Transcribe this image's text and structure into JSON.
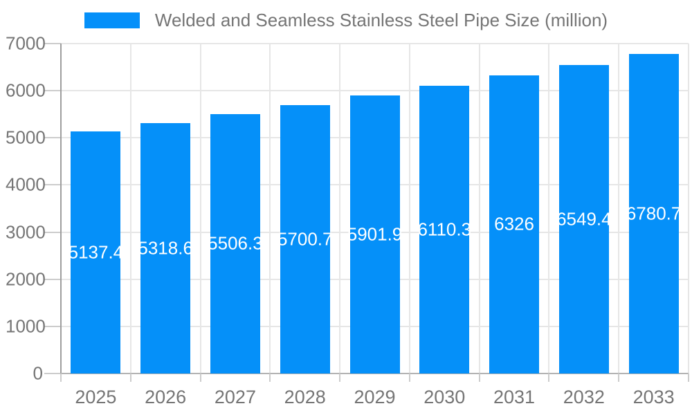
{
  "chart_data": {
    "type": "bar",
    "title": "Welded and Seamless Stainless Steel Pipe Size (million)",
    "legend": {
      "label": "Welded and Seamless Stainless Steel Pipe Size (million)",
      "position": "top"
    },
    "categories": [
      "2025",
      "2026",
      "2027",
      "2028",
      "2029",
      "2030",
      "2031",
      "2032",
      "2033"
    ],
    "series": [
      {
        "name": "Welded and Seamless Stainless Steel Pipe Size (million)",
        "values": [
          5137.4,
          5318.6,
          5506.3,
          5700.7,
          5901.9,
          6110.3,
          6326,
          6549.4,
          6780.7
        ],
        "value_labels": [
          "5137.4",
          "5318.6",
          "5506.3",
          "5700.7",
          "5901.9",
          "6110.3",
          "6326",
          "6549.4",
          "6780.7"
        ]
      }
    ],
    "xlabel": "",
    "ylabel": "",
    "ylim": [
      0,
      7000
    ],
    "ytick_interval": 1000,
    "ytick_labels": [
      "0",
      "1000",
      "2000",
      "3000",
      "4000",
      "5000",
      "6000",
      "7000"
    ],
    "grid": true,
    "colors": {
      "bar": "#0590f9",
      "value_label_text": "#ffffff",
      "axis_text": "#757575",
      "gridline": "#e6e6e6",
      "y_axis_line": "#9e9e9e",
      "x_axis_line": "#b3b3b3",
      "tick": "#cccccc",
      "background": "#ffffff"
    }
  }
}
